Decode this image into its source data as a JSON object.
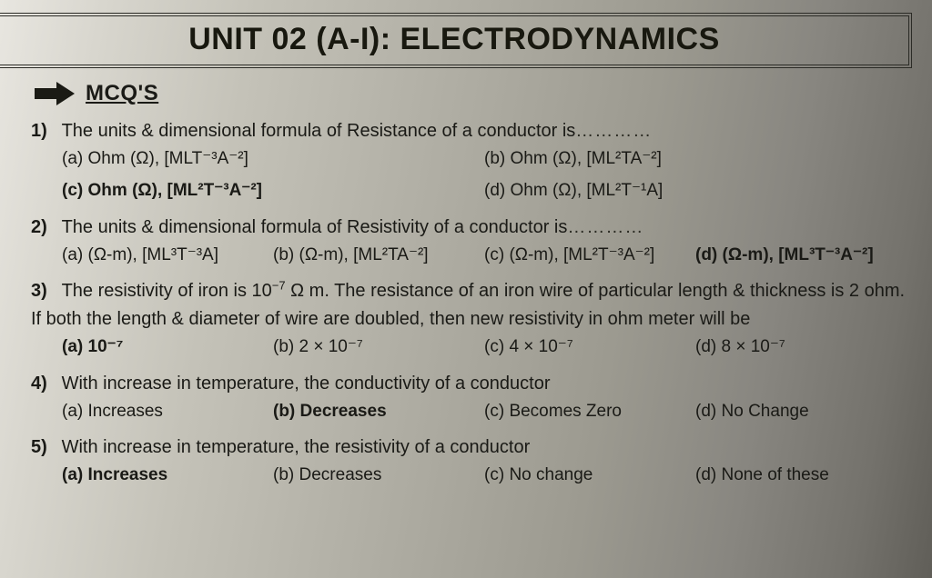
{
  "header": {
    "title": "UNIT 02 (A-I): ELECTRODYNAMICS",
    "section_label": "MCQ'S"
  },
  "questions": [
    {
      "num": "1)",
      "stem": "The units & dimensional formula of Resistance of a conductor is",
      "layout": "two-col",
      "options": {
        "a": {
          "label": "(a)",
          "text": "Ohm (Ω), [MLT⁻³A⁻²]",
          "bold": false
        },
        "b": {
          "label": "(b)",
          "text": "Ohm (Ω), [ML²TA⁻²]",
          "bold": false
        },
        "c": {
          "label": "(c)",
          "text": "Ohm (Ω), [ML²T⁻³A⁻²]",
          "bold": true
        },
        "d": {
          "label": "(d)",
          "text": "Ohm (Ω), [ML²T⁻¹A]",
          "bold": false
        }
      }
    },
    {
      "num": "2)",
      "stem": "The units & dimensional formula of Resistivity of a conductor is",
      "layout": "four-col",
      "options": {
        "a": {
          "label": "(a)",
          "text": "(Ω-m), [ML³T⁻³A]",
          "bold": false
        },
        "b": {
          "label": "(b)",
          "text": "(Ω-m), [ML²TA⁻²]",
          "bold": false
        },
        "c": {
          "label": "(c)",
          "text": "(Ω-m), [ML²T⁻³A⁻²]",
          "bold": false
        },
        "d": {
          "label": "(d)",
          "text": "(Ω-m), [ML³T⁻³A⁻²]",
          "bold": true
        }
      }
    },
    {
      "num": "3)",
      "stem_pre": "The resistivity of iron is 10",
      "stem_exp": "−7",
      "stem_post": " Ω m. The resistance of an iron wire of particular length & thickness is 2 ohm. If both the length & diameter of wire are doubled, then new resistivity in ohm meter will be",
      "layout": "four-col",
      "options": {
        "a": {
          "label": "(a)",
          "text": "10⁻⁷",
          "bold": true
        },
        "b": {
          "label": "(b)",
          "text": "2 × 10⁻⁷",
          "bold": false
        },
        "c": {
          "label": "(c)",
          "text": "4 × 10⁻⁷",
          "bold": false
        },
        "d": {
          "label": "(d)",
          "text": "8 × 10⁻⁷",
          "bold": false
        }
      }
    },
    {
      "num": "4)",
      "stem": "With increase in temperature, the conductivity of a conductor",
      "layout": "four-col",
      "options": {
        "a": {
          "label": "(a)",
          "text": "Increases",
          "bold": false
        },
        "b": {
          "label": "(b)",
          "text": "Decreases",
          "bold": true
        },
        "c": {
          "label": "(c)",
          "text": "Becomes Zero",
          "bold": false
        },
        "d": {
          "label": "(d)",
          "text": "No Change",
          "bold": false
        }
      }
    },
    {
      "num": "5)",
      "stem": "With increase in temperature, the resistivity of a conductor",
      "layout": "four-col",
      "options": {
        "a": {
          "label": "(a)",
          "text": "Increases",
          "bold": true
        },
        "b": {
          "label": "(b)",
          "text": "Decreases",
          "bold": false
        },
        "c": {
          "label": "(c)",
          "text": "No change",
          "bold": false
        },
        "d": {
          "label": "(d)",
          "text": "None of these",
          "bold": false
        }
      }
    }
  ]
}
